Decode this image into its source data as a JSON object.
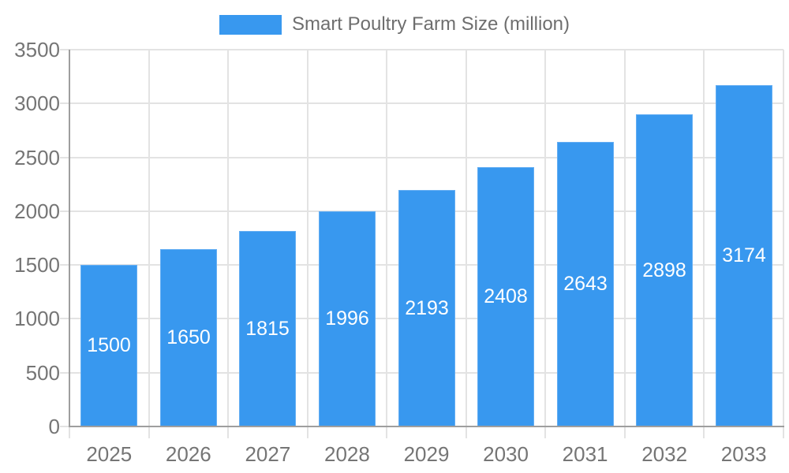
{
  "page": {
    "background": "#ffffff"
  },
  "legend": {
    "label": "Smart Poultry Farm Size (million)"
  },
  "chart_data": {
    "type": "bar",
    "title": "Smart Poultry Farm Size (million)",
    "categories": [
      "2025",
      "2026",
      "2027",
      "2028",
      "2029",
      "2030",
      "2031",
      "2032",
      "2033"
    ],
    "values": [
      1500,
      1650,
      1815,
      1996,
      2193,
      2408,
      2643,
      2898,
      3174
    ],
    "series": [
      {
        "name": "Smart Poultry Farm Size (million)",
        "values": [
          1500,
          1650,
          1815,
          1996,
          2193,
          2408,
          2643,
          2898,
          3174
        ]
      }
    ],
    "xlabel": "",
    "ylabel": "",
    "ylim": [
      0,
      3500
    ],
    "yticks": [
      0,
      500,
      1000,
      1500,
      2000,
      2500,
      3000,
      3500
    ],
    "grid": "horizontal and vertical gridlines on",
    "legend_position": "top-center",
    "value_labels": "white numbers centered inside bars"
  },
  "colors": {
    "bar_fill": "#3898ef",
    "bar_stroke": "#64aef3",
    "grid": "#e3e3e3",
    "axis": "#9e9e9e",
    "tick_text": "#757575",
    "legend_text": "#6e6e6e",
    "value_text": "#ffffff",
    "background": "#ffffff"
  }
}
